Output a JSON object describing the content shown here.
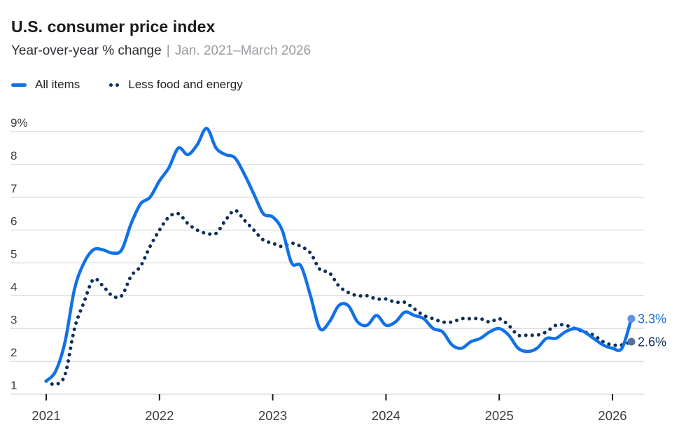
{
  "header": {
    "title": "U.S. consumer price index",
    "subtitle_main": "Year-over-year % change",
    "subtitle_separator": "|",
    "subtitle_range": "Jan. 2021–March 2026"
  },
  "legend": [
    {
      "label": "All items",
      "style": "solid",
      "color": "#1271e6"
    },
    {
      "label": "Less food and energy",
      "style": "dotted",
      "color": "#0e2f5c"
    }
  ],
  "colors": {
    "accent_blue": "#1271e6",
    "navy": "#0e2f5c",
    "marker_blue": "#5e93e6",
    "marker_slate": "#54719c",
    "gridline": "#d8d8d8",
    "axis_text": "#3b3c40",
    "tick_mark": "#1b1b1d",
    "title_text": "#1a1a1c",
    "subtitle_text": "#2c2d32",
    "subtitle_muted": "#9a9aa0"
  },
  "chart_data": {
    "type": "line",
    "title": "U.S. consumer price index",
    "subtitle": "Year-over-year % change | Jan. 2021–March 2026",
    "x_unit": "month",
    "x_start": "2021-01",
    "x_end": "2026-03",
    "x_interval": "monthly",
    "n_points": 63,
    "grid": "horizontal-only",
    "ylim": [
      1,
      9
    ],
    "y_ticks": [
      {
        "value": 9,
        "label": "9%"
      },
      {
        "value": 8,
        "label": "8"
      },
      {
        "value": 7,
        "label": "7"
      },
      {
        "value": 6,
        "label": "6"
      },
      {
        "value": 5,
        "label": "5"
      },
      {
        "value": 4,
        "label": "4"
      },
      {
        "value": 3,
        "label": "3"
      },
      {
        "value": 2,
        "label": "2"
      },
      {
        "value": 1,
        "label": "1"
      }
    ],
    "x_ticks": [
      {
        "month_index": 0,
        "label": "2021"
      },
      {
        "month_index": 12,
        "label": "2022"
      },
      {
        "month_index": 24,
        "label": "2023"
      },
      {
        "month_index": 36,
        "label": "2024"
      },
      {
        "month_index": 48,
        "label": "2025"
      },
      {
        "month_index": 60,
        "label": "2026"
      }
    ],
    "legend_position": "top-left",
    "series": [
      {
        "name": "All items",
        "style": "solid",
        "color": "#1271e6",
        "end_label": "3.3%",
        "end_label_color": "#1271e6",
        "end_marker_color": "#5e93e6",
        "values": [
          1.4,
          1.7,
          2.6,
          4.2,
          5.0,
          5.4,
          5.4,
          5.3,
          5.4,
          6.2,
          6.8,
          7.0,
          7.5,
          7.9,
          8.5,
          8.3,
          8.6,
          9.1,
          8.5,
          8.3,
          8.2,
          7.7,
          7.1,
          6.5,
          6.4,
          6.0,
          5.0,
          4.9,
          4.0,
          3.0,
          3.2,
          3.7,
          3.7,
          3.2,
          3.1,
          3.4,
          3.1,
          3.2,
          3.5,
          3.4,
          3.3,
          3.0,
          2.9,
          2.5,
          2.4,
          2.6,
          2.7,
          2.9,
          3.0,
          2.8,
          2.4,
          2.3,
          2.4,
          2.7,
          2.7,
          2.9,
          3.0,
          2.9,
          2.7,
          2.5,
          2.4,
          2.4,
          3.3
        ]
      },
      {
        "name": "Less food and energy",
        "style": "dotted",
        "color": "#0e2f5c",
        "end_label": "2.6%",
        "end_label_color": "#0e2f5c",
        "end_marker_color": "#54719c",
        "values": [
          1.4,
          1.3,
          1.6,
          3.0,
          3.8,
          4.5,
          4.3,
          4.0,
          4.0,
          4.6,
          4.9,
          5.5,
          6.0,
          6.4,
          6.5,
          6.2,
          6.0,
          5.9,
          5.9,
          6.3,
          6.6,
          6.3,
          6.0,
          5.7,
          5.6,
          5.5,
          5.6,
          5.5,
          5.3,
          4.8,
          4.7,
          4.3,
          4.1,
          4.0,
          4.0,
          3.9,
          3.9,
          3.8,
          3.8,
          3.6,
          3.4,
          3.3,
          3.2,
          3.2,
          3.3,
          3.3,
          3.3,
          3.2,
          3.3,
          3.1,
          2.8,
          2.8,
          2.8,
          2.9,
          3.1,
          3.1,
          3.0,
          2.9,
          2.8,
          2.6,
          2.5,
          2.5,
          2.6
        ]
      }
    ]
  }
}
